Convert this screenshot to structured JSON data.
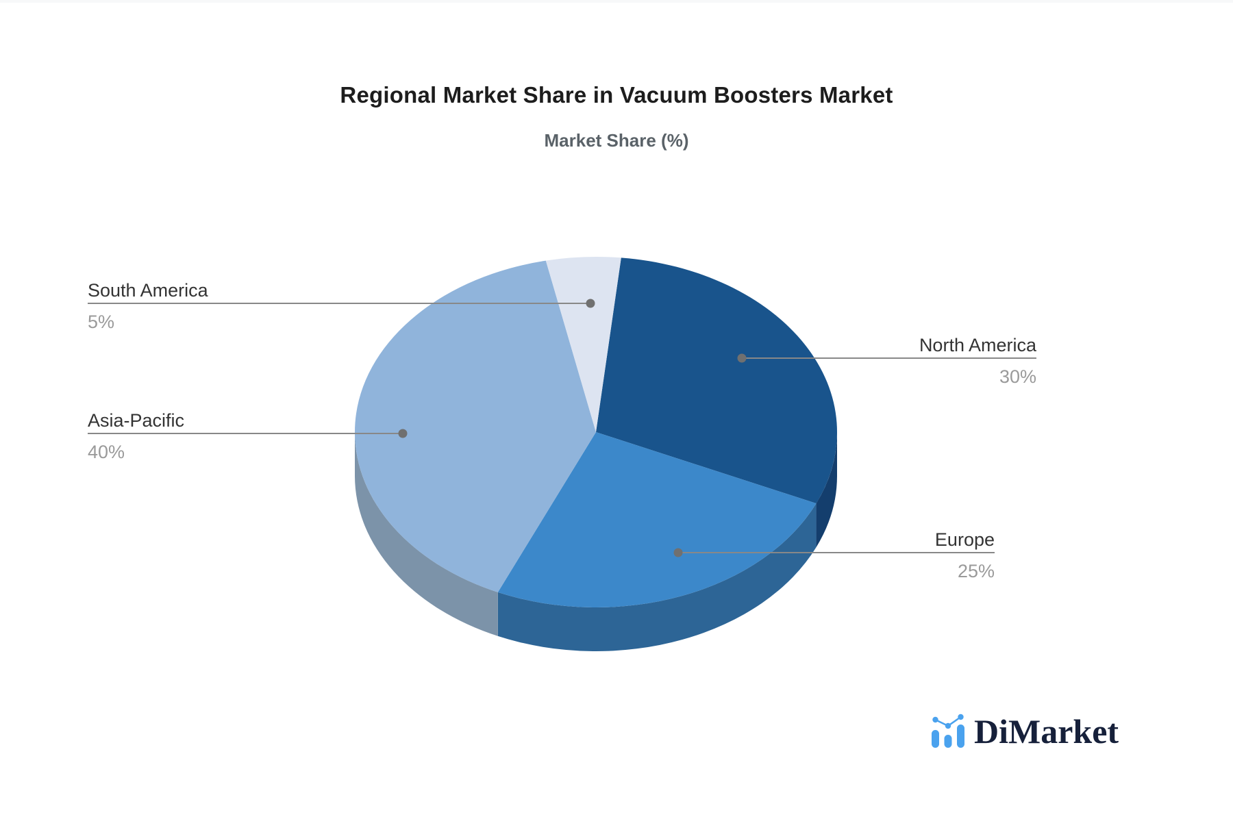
{
  "header": {
    "title": "Regional Market Share in Vacuum Boosters Market",
    "subtitle": "Market Share (%)"
  },
  "chart_data": {
    "type": "pie",
    "title": "Regional Market Share in Vacuum Boosters Market",
    "subtitle": "Market Share (%)",
    "unit": "%",
    "effect_3d": true,
    "legend_position": "connector-labels",
    "slices": [
      {
        "label": "North America",
        "value": 30,
        "percent_label": "30%",
        "color": "#19548c",
        "side_color": "#143e6d"
      },
      {
        "label": "Europe",
        "value": 25,
        "percent_label": "25%",
        "color": "#3c88ca",
        "side_color": "#2d6596"
      },
      {
        "label": "Asia-Pacific",
        "value": 40,
        "percent_label": "40%",
        "color": "#90b4db",
        "side_color": "#7c93a9"
      },
      {
        "label": "South America",
        "value": 5,
        "percent_label": "5%",
        "color": "#dde4f1",
        "side_color": "#aebacb"
      }
    ]
  },
  "colors": {
    "label_text": "#333333",
    "value_text": "#9a9a9a",
    "connector_line": "#888888",
    "connector_dot": "#707070",
    "title_text": "#1d1d1d",
    "subtitle_text": "#5a6268"
  },
  "branding": {
    "logo_text": "DiMarket",
    "logo_text_color": "#16203a",
    "logo_icon_color": "#4aa2ee",
    "logo_icon": "bar-line-chart-icon"
  }
}
